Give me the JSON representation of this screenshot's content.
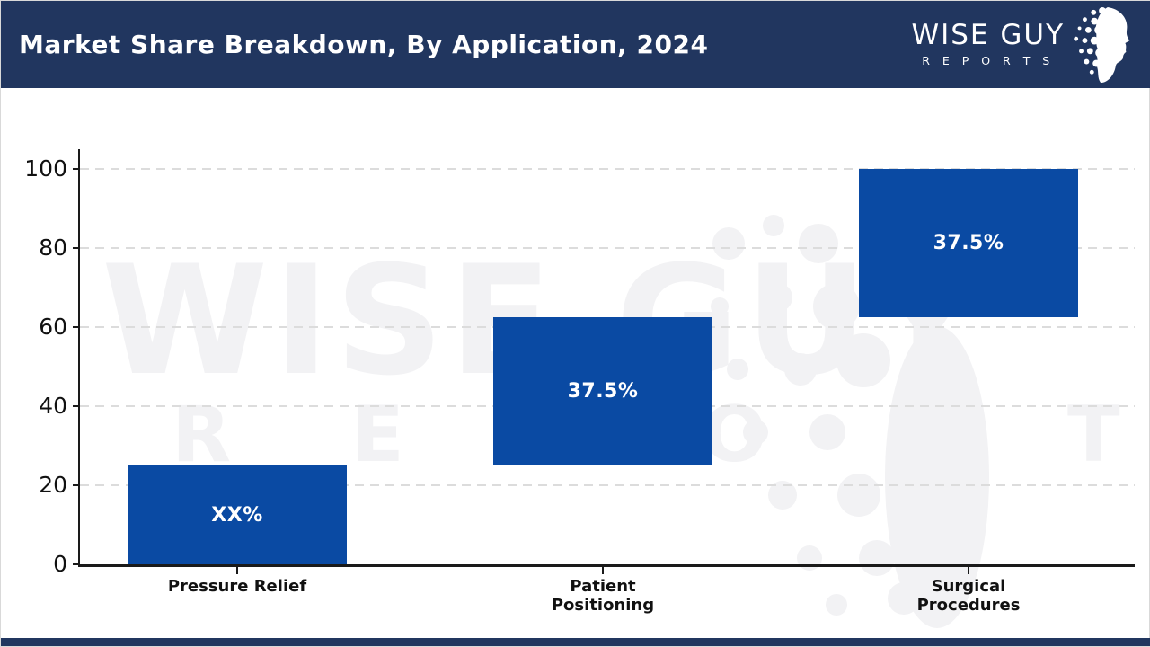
{
  "header": {
    "title": "Market Share Breakdown, By Application, 2024",
    "logo": {
      "name_line": "WISE GUY",
      "reports_line": "R E P O R T S"
    }
  },
  "watermark": {
    "name_line": "WISE GUY",
    "reports_line": "R E P O R T S"
  },
  "chart_data": {
    "type": "bar",
    "subtype": "floating-segment-waterfall",
    "title": "Market Share Breakdown, By Application, 2024",
    "categories": [
      "Pressure Relief",
      "Patient Positioning",
      "Surgical Procedures"
    ],
    "category_lines": [
      [
        "Pressure Relief"
      ],
      [
        "Patient",
        "Positioning"
      ],
      [
        "Surgical",
        "Procedures"
      ]
    ],
    "segments": [
      {
        "category": "Pressure Relief",
        "start": 0,
        "end": 25,
        "label": "XX%"
      },
      {
        "category": "Patient Positioning",
        "start": 25,
        "end": 62.5,
        "label": "37.5%"
      },
      {
        "category": "Surgical Procedures",
        "start": 62.5,
        "end": 100,
        "label": "37.5%"
      }
    ],
    "xlabel": "",
    "ylabel": "",
    "ylim": [
      0,
      100
    ],
    "yticks": [
      0,
      20,
      40,
      60,
      80,
      100
    ],
    "grid": "horizontal-dashed",
    "legend": "none",
    "bar_color": "#0a4aa3",
    "bar_label_color": "#ffffff"
  },
  "colors": {
    "header_bg": "#21365f",
    "footer_bg": "#21365f",
    "page_bg": "#ffffff",
    "grid": "#dcdcdc",
    "axis": "#1a1a1a",
    "watermark": "#f2f2f4"
  }
}
